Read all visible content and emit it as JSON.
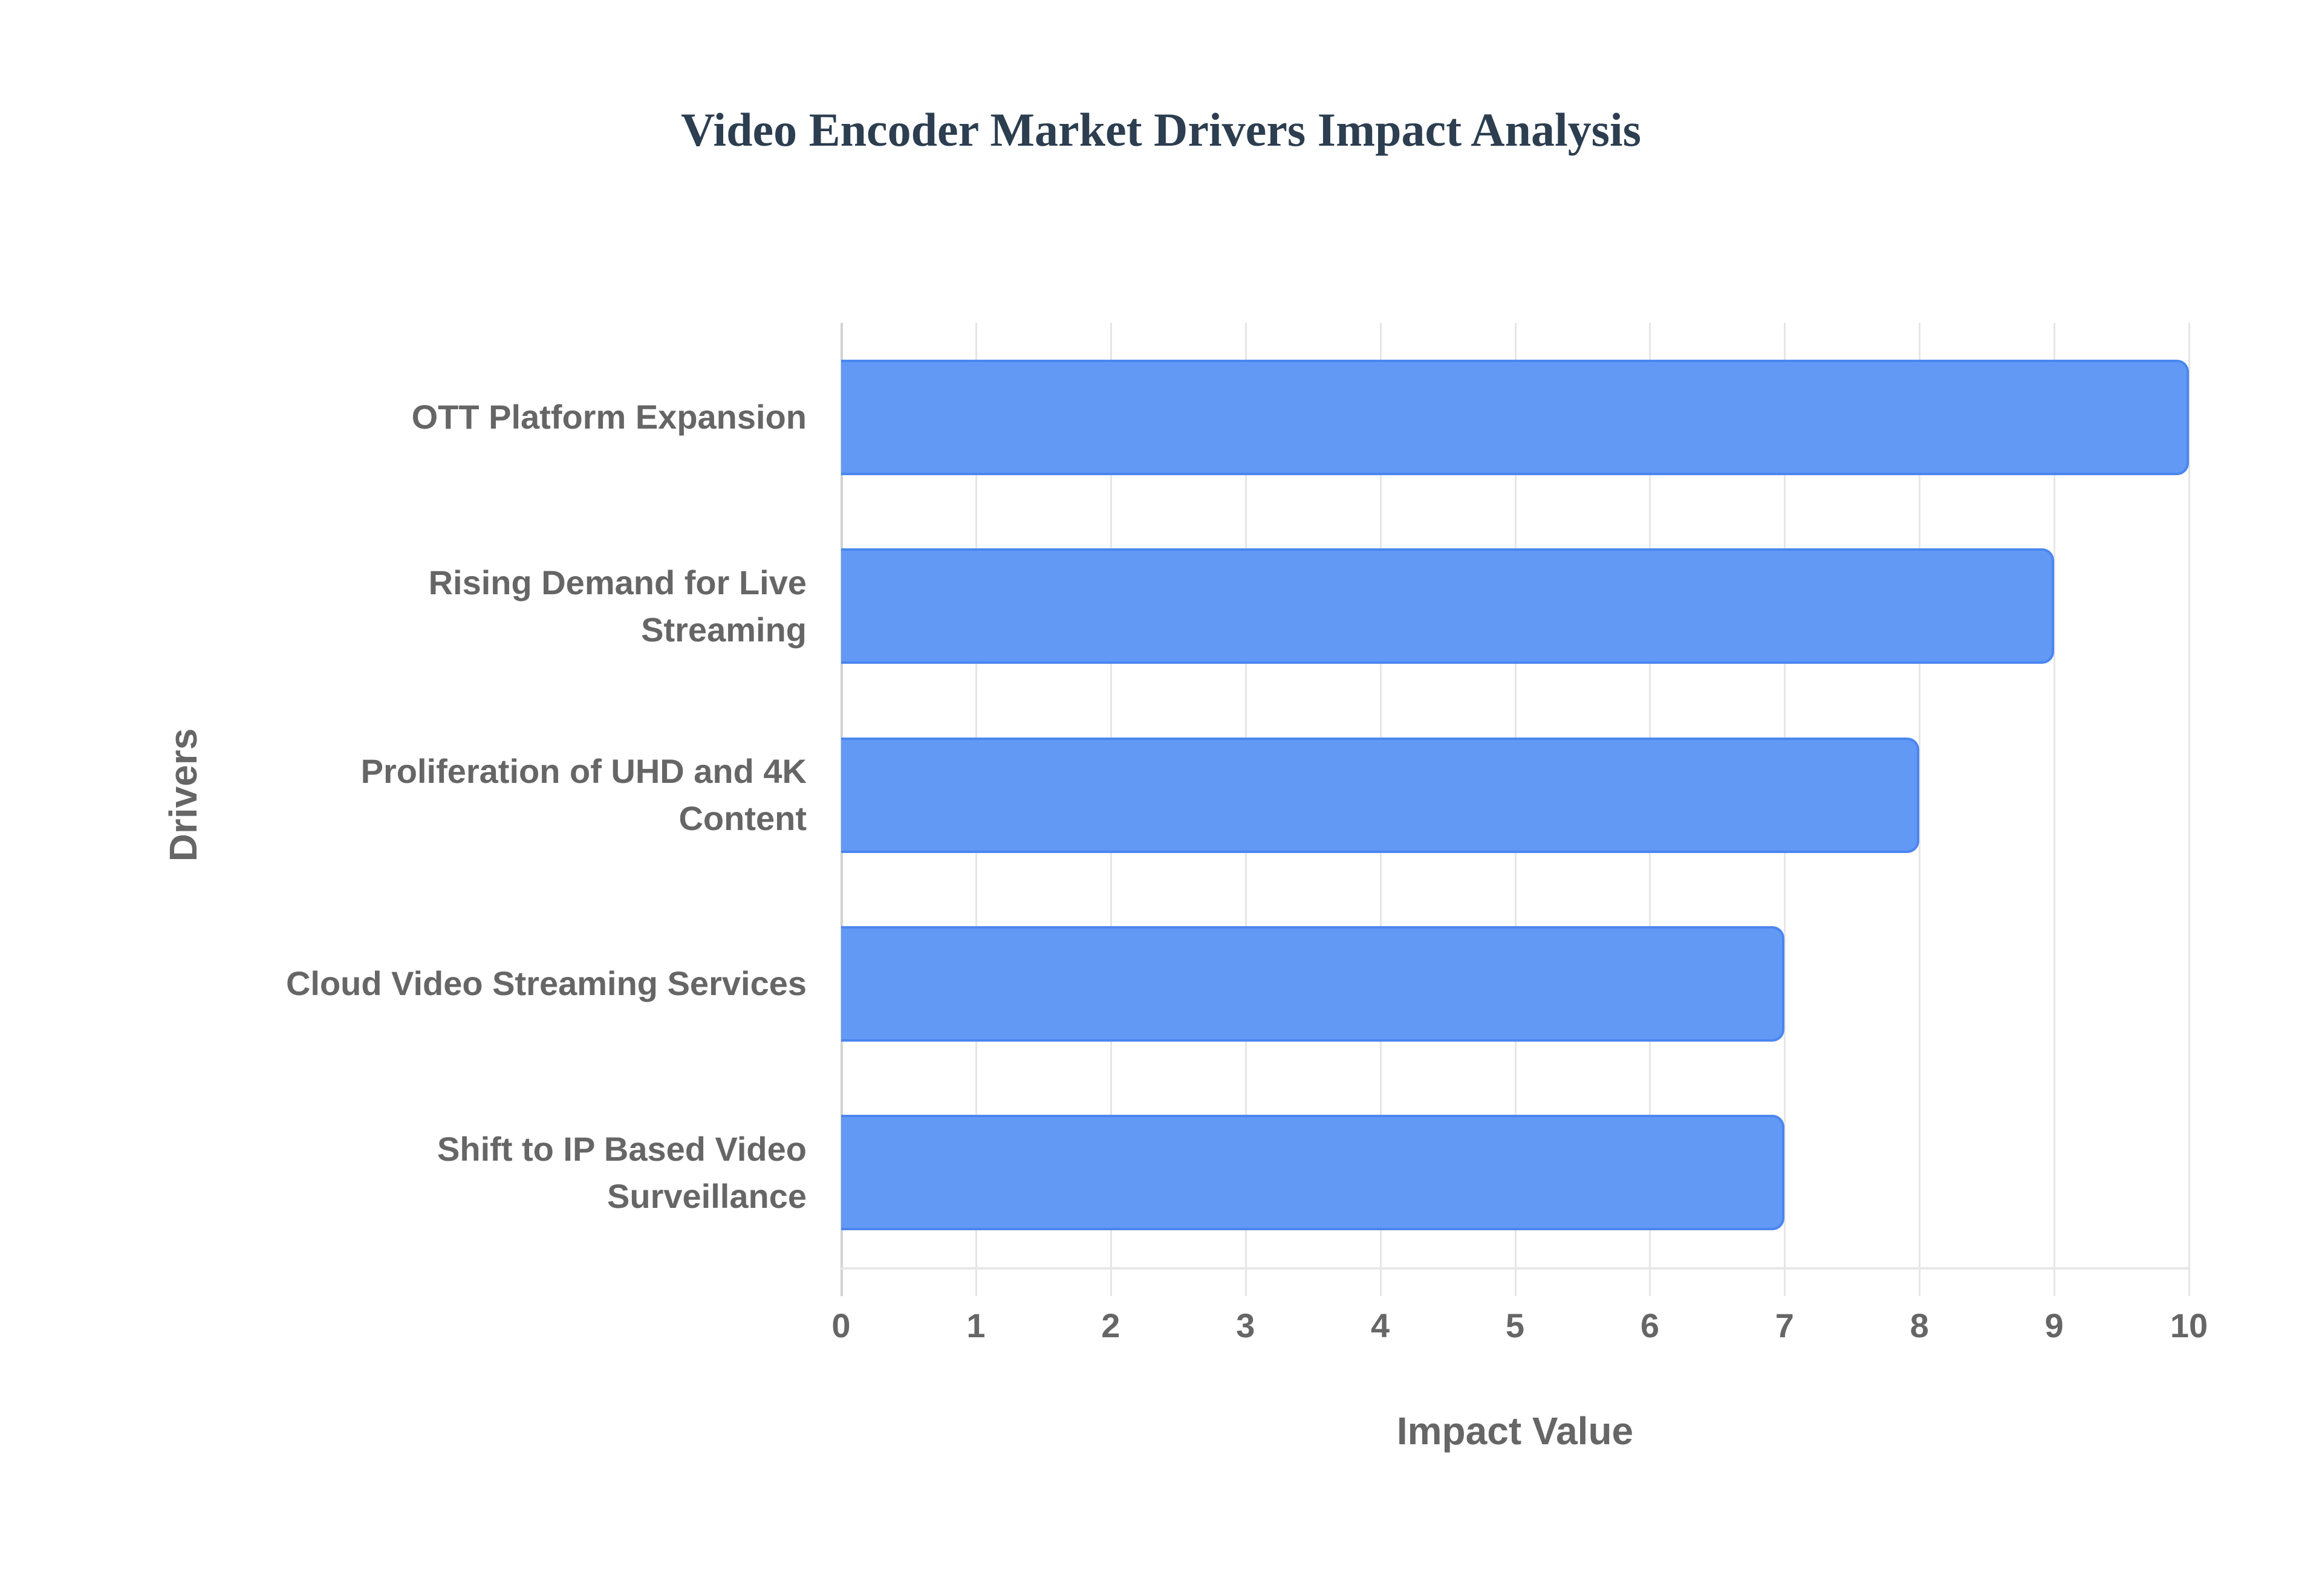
{
  "chart_data": {
    "type": "bar",
    "orientation": "horizontal",
    "title": "Video Encoder Market Drivers Impact Analysis",
    "xlabel": "Impact Value",
    "ylabel": "Drivers",
    "categories": [
      "OTT Platform Expansion",
      "Rising Demand for Live Streaming",
      "Proliferation of UHD and 4K Content",
      "Cloud Video Streaming Services",
      "Shift to IP Based Video Surveillance"
    ],
    "category_display": [
      [
        "OTT Platform Expansion"
      ],
      [
        "Rising Demand for Live",
        "Streaming"
      ],
      [
        "Proliferation of UHD and 4K",
        "Content"
      ],
      [
        "Cloud Video Streaming Services"
      ],
      [
        "Shift to IP Based Video",
        "Surveillance"
      ]
    ],
    "values": [
      10,
      9,
      8,
      7,
      7
    ],
    "xlim": [
      0,
      10
    ],
    "xticks": [
      "0",
      "1",
      "2",
      "3",
      "4",
      "5",
      "6",
      "7",
      "8",
      "9",
      "10"
    ],
    "grid": true,
    "legend": "none",
    "bar_color": "#6199f5",
    "bar_border_color": "#4b86f0"
  }
}
